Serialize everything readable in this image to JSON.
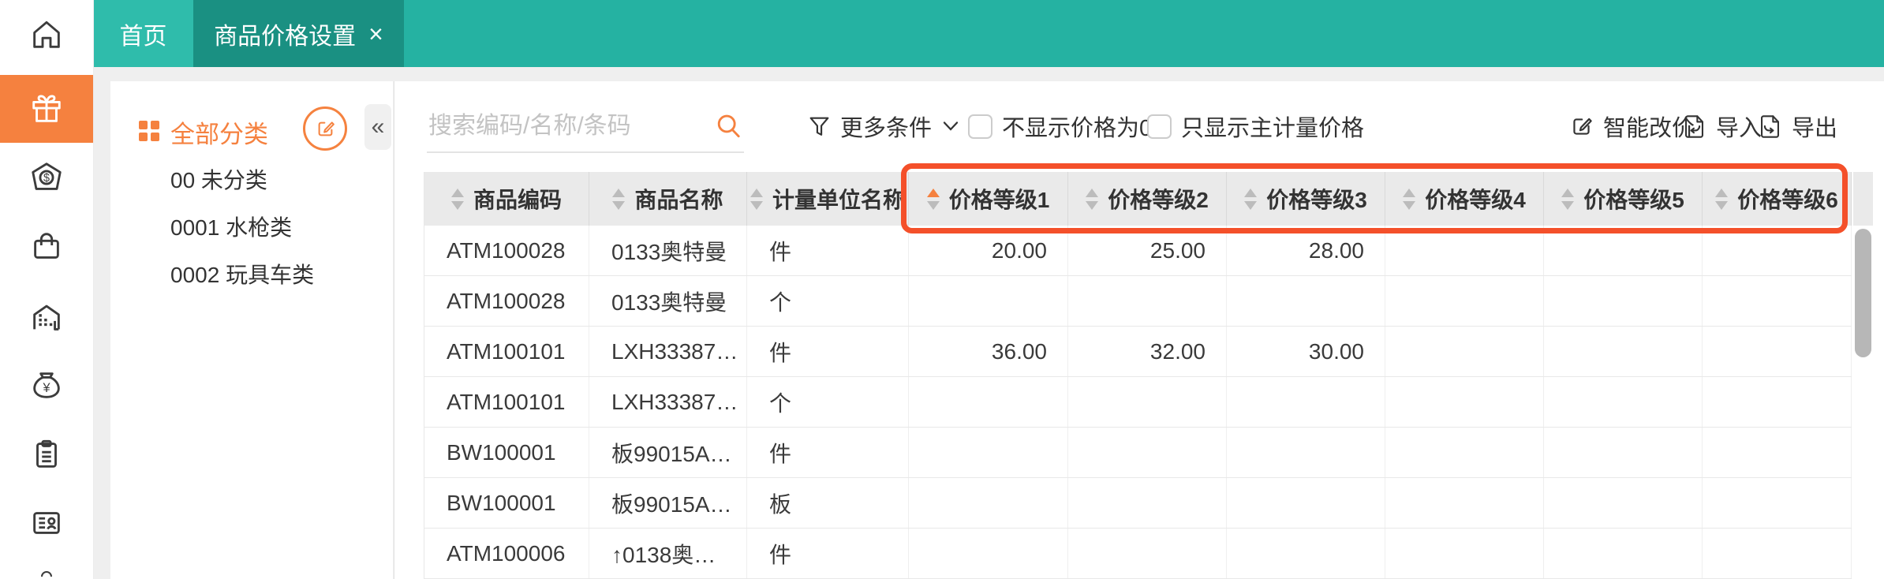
{
  "topbar": {
    "tabs": [
      {
        "label": "首页",
        "active": false
      },
      {
        "label": "商品价格设置",
        "active": true
      }
    ],
    "close_glyph": "×"
  },
  "sidebar": {
    "icons": [
      "home",
      "goods",
      "sales",
      "purchase",
      "warehouse",
      "finance",
      "orders",
      "contacts"
    ],
    "active_icon": "goods",
    "active_color": "#f5813f"
  },
  "category_panel": {
    "title": "全部分类",
    "items": [
      "00 未分类",
      "0001 水枪类",
      "0002 玩具车类"
    ],
    "collapse_glyph": "«"
  },
  "toolbar": {
    "search_placeholder": "搜索编码/名称/条码",
    "more_filters": "更多条件",
    "hide_zero_price": "不显示价格为0",
    "only_main_unit": "只显示主计量价格",
    "hide_zero_price_checked": false,
    "only_main_unit_checked": false,
    "smart_reprice": "智能改价",
    "import_label": "导入",
    "export_label": "导出"
  },
  "table": {
    "columns": [
      "商品编码",
      "商品名称",
      "计量单位名称",
      "价格等级1",
      "价格等级2",
      "价格等级3",
      "价格等级4",
      "价格等级5",
      "价格等级6"
    ],
    "sort": {
      "column": "价格等级1",
      "direction": "asc"
    },
    "highlight": {
      "from_column": "价格等级1",
      "to_column": "价格等级6",
      "color": "#f4502a"
    },
    "rows": [
      {
        "code": "ATM100028",
        "name": "0133奥特曼",
        "unit": "件",
        "prices": [
          "20.00",
          "25.00",
          "28.00",
          "",
          "",
          ""
        ]
      },
      {
        "code": "ATM100028",
        "name": "0133奥特曼",
        "unit": "个",
        "prices": [
          "",
          "",
          "",
          "",
          "",
          ""
        ]
      },
      {
        "code": "ATM100101",
        "name": "LXH33387…",
        "unit": "件",
        "prices": [
          "36.00",
          "32.00",
          "30.00",
          "",
          "",
          ""
        ]
      },
      {
        "code": "ATM100101",
        "name": "LXH33387…",
        "unit": "个",
        "prices": [
          "",
          "",
          "",
          "",
          "",
          ""
        ]
      },
      {
        "code": "BW100001",
        "name": "板99015A…",
        "unit": "件",
        "prices": [
          "",
          "",
          "",
          "",
          "",
          ""
        ]
      },
      {
        "code": "BW100001",
        "name": "板99015A…",
        "unit": "板",
        "prices": [
          "",
          "",
          "",
          "",
          "",
          ""
        ]
      },
      {
        "code": "ATM100006",
        "name": "↑0138奥…",
        "unit": "件",
        "prices": [
          "",
          "",
          "",
          "",
          "",
          ""
        ]
      }
    ]
  },
  "colors": {
    "topbar": "#25b2a2",
    "tab_active": "#1a9082",
    "accent_orange": "#f5813f",
    "highlight_red": "#f4502a",
    "header_bg": "#eaeaea",
    "content_bg": "#efefef",
    "panel_bg": "#ffffff"
  }
}
